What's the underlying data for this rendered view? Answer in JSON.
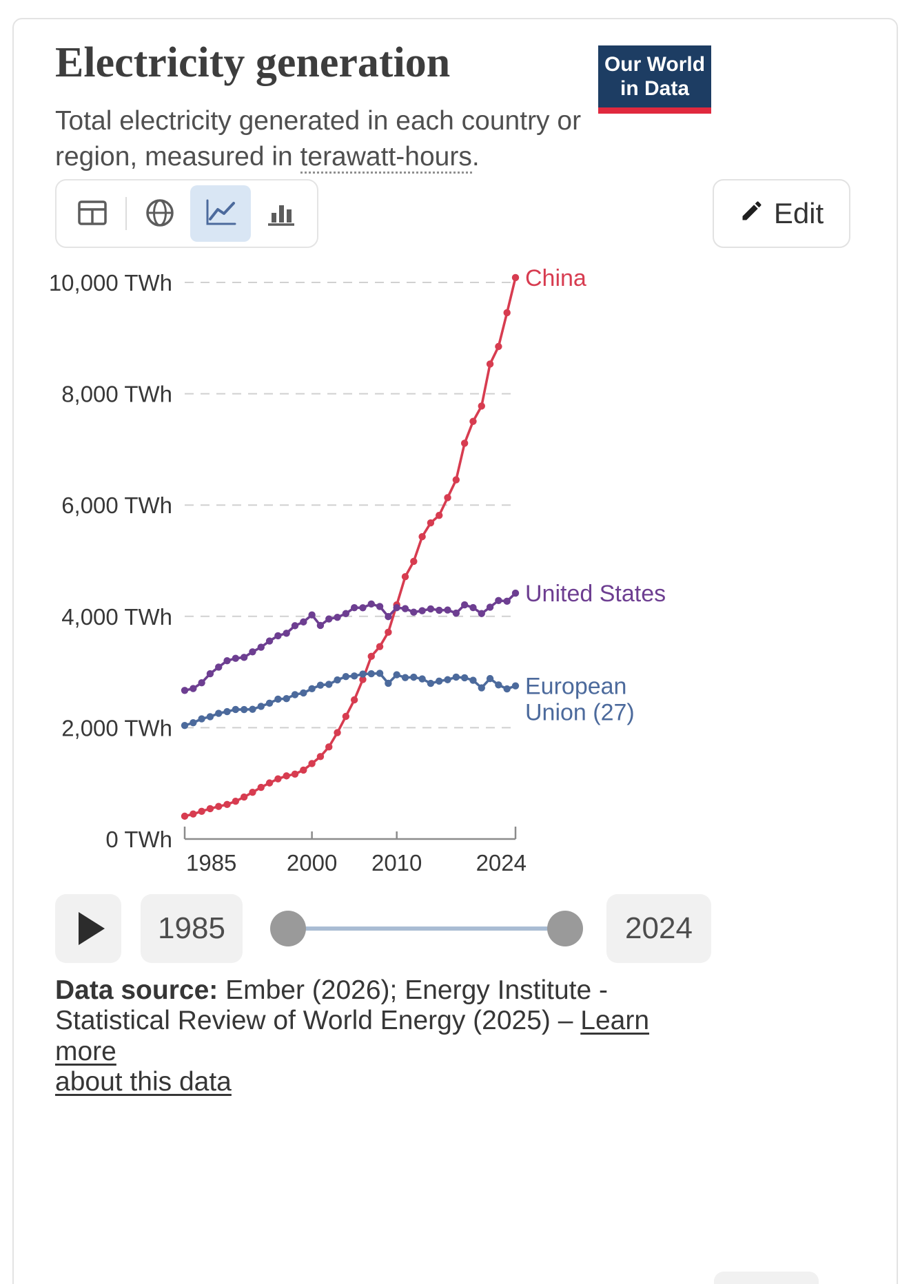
{
  "header": {
    "title": "Electricity generation",
    "subtitle": {
      "before": "Total electricity generated in each country or\nregion, measured in ",
      "link": "terawatt-hours",
      "after": "."
    },
    "logo": {
      "line1": "Our World",
      "line2": "in Data"
    }
  },
  "toolbar": {
    "icons": [
      "table-icon",
      "globe-icon",
      "line-chart-icon",
      "bar-chart-icon"
    ],
    "active_icon": "line-chart-icon",
    "edit_label": "Edit"
  },
  "timeline": {
    "start_label": "1985",
    "end_label": "2024"
  },
  "footer": {
    "label": "Data source: ",
    "text": "Ember (2026); Energy Institute -\nStatistical Review of World Energy (2025) – ",
    "link": "Learn more\nabout this data"
  },
  "colors": {
    "accent_blue": "#d9e6f4",
    "logo_navy": "#1d3d63",
    "logo_red": "#e0293e",
    "grid": "#d0d0d0",
    "axis": "#8b8b8b"
  },
  "chart_data": {
    "type": "line",
    "title": "Electricity generation",
    "unit": "TWh",
    "grid": "dashed",
    "legend_position": "right-of-line-end",
    "x": [
      1985,
      1986,
      1987,
      1988,
      1989,
      1990,
      1991,
      1992,
      1993,
      1994,
      1995,
      1996,
      1997,
      1998,
      1999,
      2000,
      2001,
      2002,
      2003,
      2004,
      2005,
      2006,
      2007,
      2008,
      2009,
      2010,
      2011,
      2012,
      2013,
      2014,
      2015,
      2016,
      2017,
      2018,
      2019,
      2020,
      2021,
      2022,
      2023,
      2024
    ],
    "xticks": [
      1985,
      2000,
      2010,
      2024
    ],
    "ylim": [
      0,
      10000
    ],
    "yticks": [
      0,
      2000,
      4000,
      6000,
      8000,
      10000
    ],
    "ytick_labels": [
      "0 TWh",
      "2,000 TWh",
      "4,000 TWh",
      "6,000 TWh",
      "8,000 TWh",
      "10,000 TWh"
    ],
    "series": [
      {
        "name": "China",
        "label_lines": [
          "China"
        ],
        "color": "#d73c50",
        "values": [
          410,
          449,
          497,
          545,
          585,
          621,
          678,
          754,
          839,
          928,
          1007,
          1081,
          1134,
          1166,
          1239,
          1356,
          1481,
          1654,
          1911,
          2203,
          2500,
          2866,
          3282,
          3457,
          3715,
          4207,
          4713,
          4988,
          5432,
          5680,
          5815,
          6133,
          6453,
          7111,
          7503,
          7779,
          8534,
          8849,
          9456,
          10087
        ]
      },
      {
        "name": "United States",
        "label_lines": [
          "United States"
        ],
        "color": "#6d3e91",
        "values": [
          2670,
          2703,
          2807,
          2970,
          3089,
          3203,
          3246,
          3263,
          3363,
          3446,
          3558,
          3652,
          3697,
          3832,
          3900,
          4026,
          3837,
          3954,
          3983,
          4050,
          4156,
          4155,
          4222,
          4178,
          3996,
          4157,
          4139,
          4076,
          4102,
          4135,
          4110,
          4114,
          4058,
          4207,
          4158,
          4050,
          4165,
          4285,
          4272,
          4418
        ]
      },
      {
        "name": "European Union (27)",
        "label_lines": [
          "European",
          "Union (27)"
        ],
        "color": "#4c6a9c",
        "values": [
          2040,
          2089,
          2159,
          2198,
          2258,
          2289,
          2327,
          2326,
          2331,
          2383,
          2441,
          2513,
          2523,
          2594,
          2624,
          2700,
          2764,
          2779,
          2858,
          2918,
          2929,
          2963,
          2969,
          2977,
          2798,
          2951,
          2900,
          2907,
          2877,
          2796,
          2837,
          2862,
          2909,
          2897,
          2852,
          2716,
          2882,
          2769,
          2697,
          2752
        ]
      }
    ]
  }
}
